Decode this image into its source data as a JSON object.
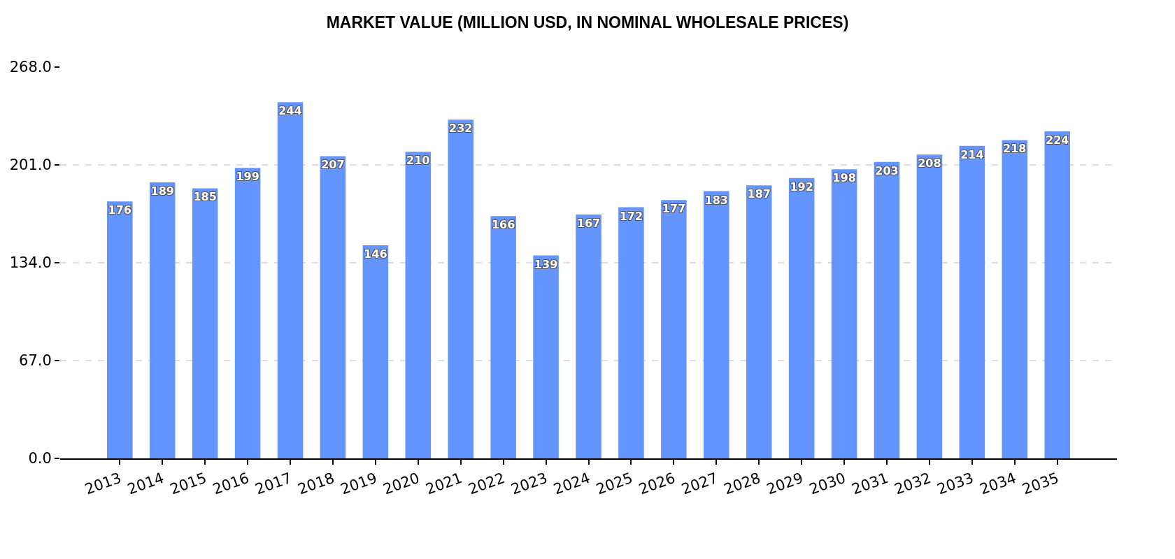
{
  "chart_data": {
    "type": "bar",
    "title": "MARKET VALUE (MILLION USD, IN NOMINAL WHOLESALE PRICES)",
    "categories": [
      "2013",
      "2014",
      "2015",
      "2016",
      "2017",
      "2018",
      "2019",
      "2020",
      "2021",
      "2022",
      "2023",
      "2024",
      "2025",
      "2026",
      "2027",
      "2028",
      "2029",
      "2030",
      "2031",
      "2032",
      "2033",
      "2034",
      "2035"
    ],
    "values": [
      176,
      189,
      185,
      199,
      244,
      207,
      146,
      210,
      232,
      166,
      139,
      167,
      172,
      177,
      183,
      187,
      192,
      198,
      203,
      208,
      214,
      218,
      224
    ],
    "color": "#6495fe",
    "ylim": [
      0,
      268
    ],
    "yticks": [
      {
        "value": 0,
        "label": "0.0"
      },
      {
        "value": 67,
        "label": "67.0"
      },
      {
        "value": 134,
        "label": "134.0"
      },
      {
        "value": 201,
        "label": "201.0"
      },
      {
        "value": 268,
        "label": "268.0"
      }
    ],
    "grid": "y",
    "data_labels": true
  }
}
